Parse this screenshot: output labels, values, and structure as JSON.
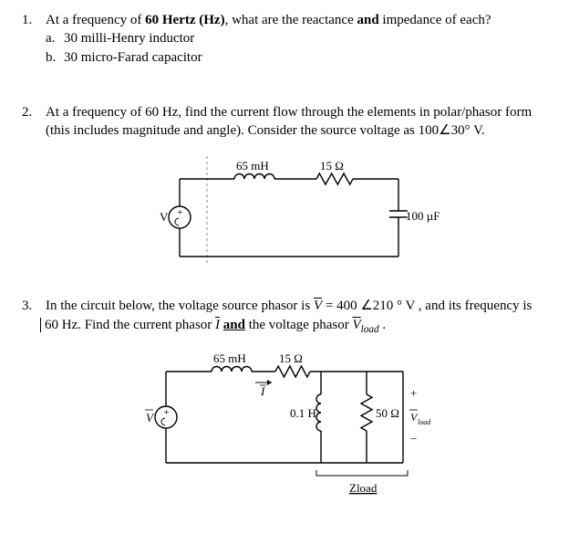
{
  "q1": {
    "num": "1.",
    "text_pre": "At a frequency of ",
    "freq": "60 Hertz (Hz)",
    "text_mid": ", what are the reactance ",
    "and": "and",
    "text_post": " impedance of each?",
    "a_num": "a.",
    "a_text": "30 milli-Henry inductor",
    "b_num": "b.",
    "b_text": "30 micro-Farad capacitor"
  },
  "q2": {
    "num": "2.",
    "line1": "At a frequency of 60 Hz, find the current flow through the elements in polar/phasor form",
    "line2": "(this includes magnitude and angle). Consider the source voltage as 100∠30° V.",
    "circuit": {
      "inductor_label": "65 mH",
      "resistor_label": "15 Ω",
      "cap_label": "100 µF",
      "source_label": "V",
      "colors": {
        "stroke": "#000000",
        "bg": "#ffffff",
        "dash": "#888888"
      },
      "line_width": 1.4
    }
  },
  "q3": {
    "num": "3.",
    "line1_pre": "In the circuit below, the voltage source phasor is ",
    "V": "V",
    "eq": " = 400 ∠210 ° V , and its frequency is",
    "line2_pre": "60 Hz.  Find the current phasor ",
    "I": "I",
    "and_word": "and",
    "line2_mid": " the voltage phasor ",
    "Vload": "V",
    "load_sub": "load",
    "period": " .",
    "circuit": {
      "inductor_label": "65 mH",
      "resistor_label": "15 Ω",
      "inductor2_label": "0.1 H",
      "resistor2_label": "50 Ω",
      "source_label": "V",
      "I_label": "I",
      "Vload_label": "V",
      "Vload_sub": "load",
      "Zload_label": "Zload",
      "plus": "+",
      "minus": "−",
      "colors": {
        "stroke": "#000000",
        "bg": "#ffffff"
      },
      "line_width": 1.4
    }
  }
}
